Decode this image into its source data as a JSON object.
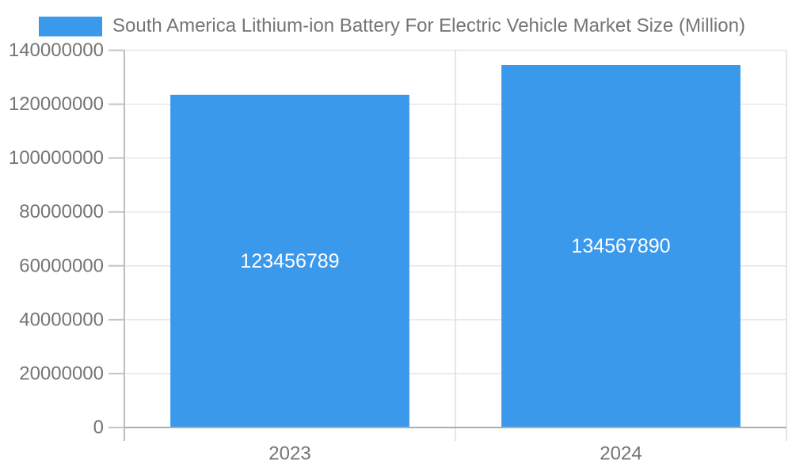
{
  "chart_data": {
    "type": "bar",
    "title": "South America Lithium-ion Battery For Electric Vehicle Market Size (Million)",
    "categories": [
      "2023",
      "2024"
    ],
    "values": [
      123456789,
      134567890
    ],
    "bar_labels": [
      "123456789",
      "134567890"
    ],
    "xlabel": "",
    "ylabel": "",
    "ylim": [
      0,
      140000000
    ],
    "ytick_step": 20000000,
    "ytick_labels": [
      "0",
      "20000000",
      "40000000",
      "60000000",
      "80000000",
      "100000000",
      "120000000",
      "140000000"
    ],
    "grid": true,
    "legend_position": "top-left",
    "legend_items": [
      {
        "label": "South America Lithium-ion Battery For Electric Vehicle Market Size (Million)",
        "color": "#3B99EC"
      }
    ]
  },
  "colors": {
    "bar": "#3B99EC",
    "title_text": "#757575",
    "axis_text": "#757575",
    "bar_label_text": "#FFFFFF",
    "gridline": "#E6E6E6",
    "divider_line": "#DEDEDE",
    "baseline": "#ADADAD",
    "axis_line": "#BDBDBD",
    "tick_dash": "#C4C4C4",
    "background": "#FFFFFF"
  }
}
